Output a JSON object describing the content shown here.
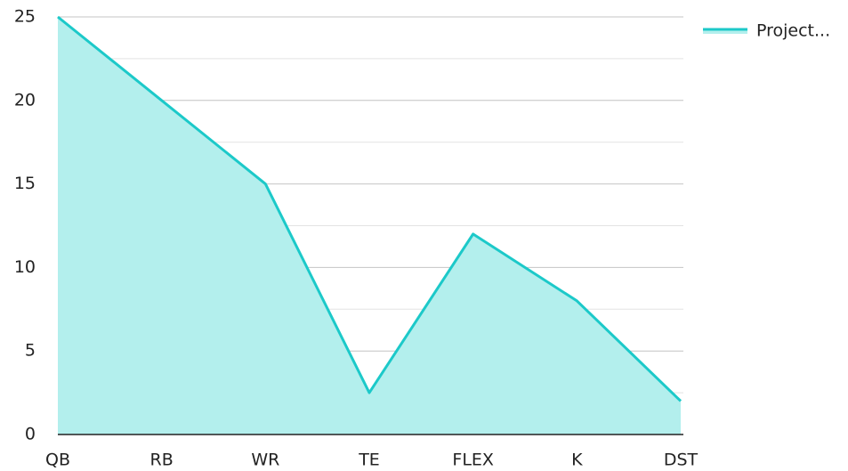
{
  "chart_data": {
    "type": "area",
    "categories": [
      "QB",
      "RB",
      "WR",
      "TE",
      "FLEX",
      "K",
      "DST"
    ],
    "series": [
      {
        "name": "Project...",
        "color": "#1cc9c9",
        "fill": "#b3efed",
        "values": [
          25,
          20,
          15,
          2.5,
          12,
          8,
          2
        ]
      }
    ],
    "ylim": [
      0,
      25
    ],
    "yticks": [
      0,
      5,
      10,
      15,
      20,
      25
    ],
    "minor_yticks": [
      2.5,
      7.5,
      12.5,
      17.5,
      22.5
    ],
    "grid": true,
    "legend": "top-right"
  }
}
